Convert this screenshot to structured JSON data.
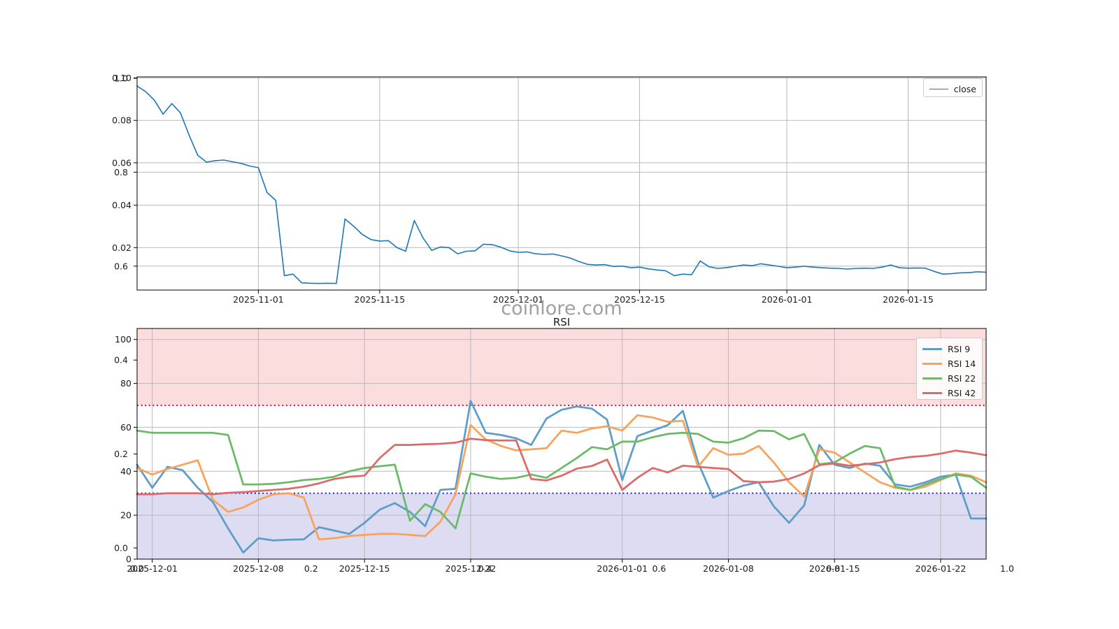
{
  "watermark": "coinlore.com",
  "overlay_axis": {
    "x_tick_labels": [
      "0.0",
      "0.2",
      "0.4",
      "0.6",
      "0.8",
      "1.0"
    ],
    "y_tick_labels": [
      "0.0",
      "0.2",
      "0.4",
      "0.6",
      "0.8",
      "1.0"
    ]
  },
  "chart_data": [
    {
      "type": "line",
      "title": "",
      "legend_position": "upper right",
      "grid": true,
      "x_start_date": "2025-10-18",
      "x_ticks": [
        {
          "i": 14,
          "label": "2025-11-01"
        },
        {
          "i": 28,
          "label": "2025-11-15"
        },
        {
          "i": 44,
          "label": "2025-12-01"
        },
        {
          "i": 58,
          "label": "2025-12-15"
        },
        {
          "i": 75,
          "label": "2026-01-01"
        },
        {
          "i": 89,
          "label": "2026-01-15"
        }
      ],
      "y_ticks": [
        {
          "v": 0.02,
          "label": "0.02"
        },
        {
          "v": 0.04,
          "label": "0.04"
        },
        {
          "v": 0.06,
          "label": "0.06"
        },
        {
          "v": 0.08,
          "label": "0.08"
        },
        {
          "v": 0.1,
          "label": "0.10"
        }
      ],
      "ylim": [
        0,
        0.1005
      ],
      "series": [
        {
          "name": "close",
          "color": "#1f77b4",
          "width": 1.6,
          "values": [
            0.0962,
            0.0935,
            0.0895,
            0.0829,
            0.0879,
            0.0836,
            0.0731,
            0.0636,
            0.0603,
            0.061,
            0.0613,
            0.0605,
            0.0597,
            0.0585,
            0.0577,
            0.046,
            0.0423,
            0.0068,
            0.0075,
            0.0034,
            0.0032,
            0.0031,
            0.0032,
            0.0031,
            0.0335,
            0.0301,
            0.0262,
            0.0238,
            0.0231,
            0.0233,
            0.02,
            0.0183,
            0.0328,
            0.0246,
            0.0187,
            0.0203,
            0.02,
            0.0171,
            0.0183,
            0.0185,
            0.0216,
            0.0214,
            0.0202,
            0.0185,
            0.0178,
            0.018,
            0.0171,
            0.0168,
            0.017,
            0.0161,
            0.0151,
            0.0134,
            0.0121,
            0.0118,
            0.012,
            0.0111,
            0.0113,
            0.0105,
            0.0108,
            0.01,
            0.0095,
            0.0091,
            0.0068,
            0.0075,
            0.0072,
            0.0137,
            0.011,
            0.0102,
            0.0105,
            0.0112,
            0.0118,
            0.0115,
            0.0124,
            0.0118,
            0.0112,
            0.0105,
            0.0108,
            0.0112,
            0.0108,
            0.0105,
            0.0103,
            0.0102,
            0.0099,
            0.0102,
            0.0103,
            0.0102,
            0.0108,
            0.0118,
            0.0105,
            0.0103,
            0.0104,
            0.0103,
            0.0088,
            0.0075,
            0.0077,
            0.0081,
            0.0082,
            0.0086,
            0.0084
          ]
        }
      ]
    },
    {
      "type": "line",
      "title": "RSI",
      "legend_position": "upper right",
      "grid": true,
      "x_start_date": "2025-11-30",
      "x_ticks": [
        {
          "i": 1,
          "label": "2025-12-01"
        },
        {
          "i": 8,
          "label": "2025-12-08"
        },
        {
          "i": 15,
          "label": "2025-12-15"
        },
        {
          "i": 22,
          "label": "2025-12-22"
        },
        {
          "i": 32,
          "label": "2026-01-01"
        },
        {
          "i": 39,
          "label": "2026-01-08"
        },
        {
          "i": 46,
          "label": "2026-01-15"
        },
        {
          "i": 53,
          "label": "2026-01-22"
        }
      ],
      "y_ticks": [
        {
          "v": 0,
          "label": "0"
        },
        {
          "v": 20,
          "label": "20"
        },
        {
          "v": 40,
          "label": "40"
        },
        {
          "v": 60,
          "label": "60"
        },
        {
          "v": 80,
          "label": "80"
        },
        {
          "v": 100,
          "label": "100"
        }
      ],
      "ylim": [
        0,
        105
      ],
      "bands": [
        {
          "from": 70,
          "to": 105,
          "color": "#fbdddd",
          "name": "overbought-band"
        },
        {
          "from": 0,
          "to": 30,
          "color": "#dddcf3",
          "name": "oversold-band"
        }
      ],
      "hlines": [
        {
          "y": 70,
          "color": "#dc1430",
          "name": "overbought-line"
        },
        {
          "y": 30,
          "color": "#1414c8",
          "name": "oversold-line"
        }
      ],
      "series": [
        {
          "name": "RSI 9",
          "color": "#5f9dc9",
          "width": 2.75,
          "values": [
            43,
            32.5,
            42,
            40.5,
            32.5,
            26,
            14,
            3,
            9.5,
            8.5,
            8.8,
            9,
            14.5,
            13,
            11.5,
            16.5,
            22.5,
            25.5,
            21.5,
            15,
            31.5,
            32,
            72,
            57.5,
            56.5,
            55,
            52,
            64,
            68,
            69.5,
            68.5,
            63.5,
            36,
            56,
            58.5,
            61,
            67.5,
            44,
            28,
            31,
            33.5,
            35,
            24,
            16.5,
            24.5,
            52,
            43,
            41.5,
            43.5,
            42.5,
            34,
            33,
            35,
            37.5,
            38.5,
            18.5,
            18.5
          ]
        },
        {
          "name": "RSI 14",
          "color": "#f8a35c",
          "width": 2.75,
          "values": [
            41.5,
            38.5,
            41,
            43,
            45,
            27,
            21.5,
            23.5,
            27,
            29.5,
            30,
            28,
            9,
            9.5,
            10.5,
            11,
            11.5,
            11.5,
            11,
            10.5,
            17,
            29.5,
            61,
            54.5,
            51.5,
            49.5,
            50,
            50.5,
            58.5,
            57.5,
            59.5,
            60.5,
            58.5,
            65.5,
            64.5,
            62.5,
            63,
            42,
            50.5,
            47.5,
            48,
            51.5,
            44,
            35,
            28.5,
            50,
            48.5,
            44,
            39.5,
            35,
            32.5,
            31.5,
            33,
            36,
            39,
            38,
            35
          ]
        },
        {
          "name": "RSI 22",
          "color": "#6aba6a",
          "width": 2.75,
          "values": [
            58.5,
            57.5,
            57.5,
            57.5,
            57.5,
            57.5,
            56.5,
            34,
            34,
            34.3,
            35,
            36,
            36.5,
            37.5,
            40,
            41.5,
            42.3,
            43,
            17.5,
            25,
            21.5,
            14,
            39,
            37.5,
            36.5,
            37,
            38.5,
            37,
            41.5,
            46,
            51,
            50,
            53.5,
            53.5,
            55.5,
            57,
            57.5,
            57,
            53.5,
            53,
            55,
            58.5,
            58.3,
            54.5,
            57,
            43.2,
            44,
            48,
            51.5,
            50.5,
            33,
            31.5,
            34,
            36.5,
            38.5,
            37.5,
            32.5
          ]
        },
        {
          "name": "RSI 42",
          "color": "#dc6a6b",
          "width": 2.75,
          "values": [
            29.5,
            29.5,
            30,
            30,
            30,
            29.5,
            30.2,
            30.5,
            31,
            31.5,
            32,
            33,
            34.5,
            36.5,
            37.5,
            38,
            46,
            52,
            52,
            52.3,
            52.5,
            53,
            54.8,
            54.2,
            54,
            54,
            36.5,
            35.8,
            38,
            41.2,
            42.4,
            45.3,
            31.5,
            37,
            41.5,
            39.5,
            42.5,
            42,
            41.5,
            41,
            35.5,
            35,
            35.3,
            36.5,
            39,
            42.8,
            43.6,
            42.5,
            43.2,
            44,
            45.5,
            46.5,
            47,
            48,
            49.4,
            48.5,
            47.3
          ]
        }
      ]
    }
  ]
}
